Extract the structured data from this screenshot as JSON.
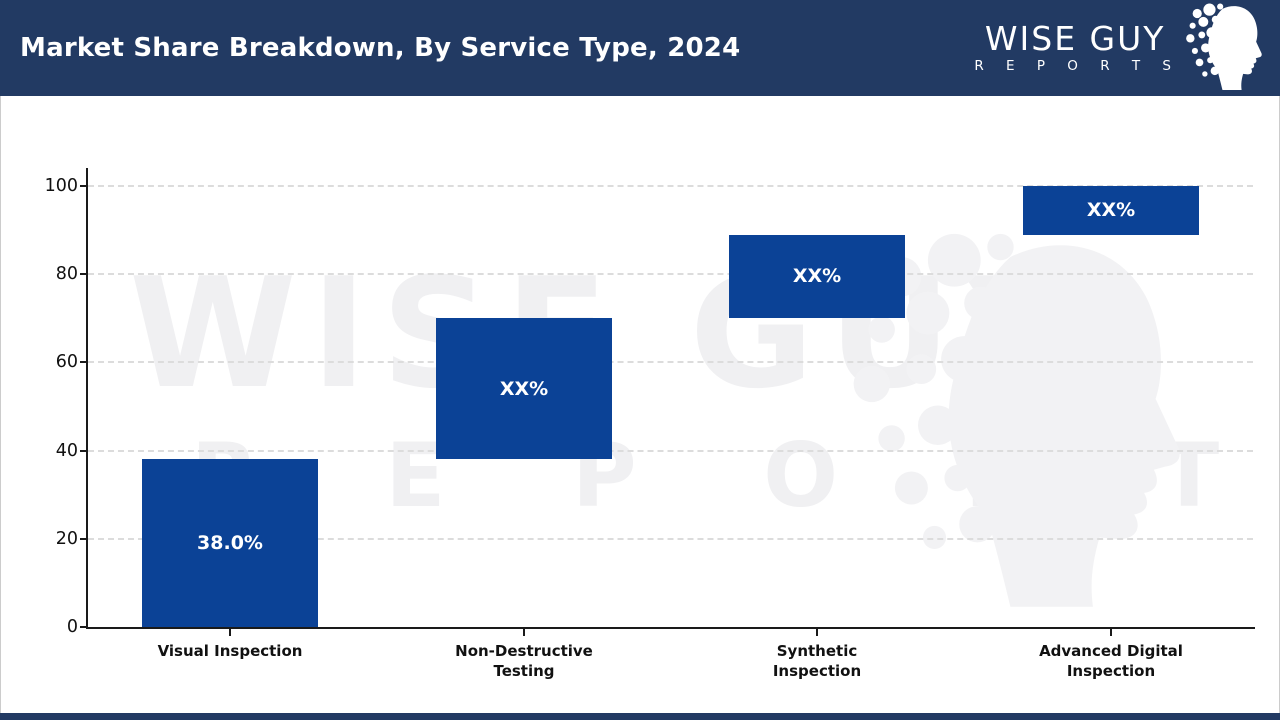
{
  "header": {
    "title": "Market Share Breakdown, By Service Type, 2024",
    "bg_color": "#223a63",
    "text_color": "#ffffff",
    "brand": {
      "line1": "WISE GUY",
      "line2": "R E P O R T S",
      "icon": "head-dots-icon"
    }
  },
  "watermark": {
    "line1": "WISE GUY",
    "line2": "R E P O R T S",
    "icon": "head-dots-icon"
  },
  "chart_data": {
    "type": "bar",
    "subtype": "floating-waterfall",
    "title": "Market Share Breakdown, By Service Type, 2024",
    "xlabel": "",
    "ylabel": "",
    "ylim": [
      0,
      100
    ],
    "yticks": [
      0,
      20,
      40,
      60,
      80,
      100
    ],
    "grid": "horizontal-dashed",
    "legend": "none",
    "bar_color": "#0b4296",
    "bar_label_color": "#ffffff",
    "categories": [
      {
        "label": "Visual Inspection",
        "lines": [
          "Visual Inspection"
        ]
      },
      {
        "label": "Non-Destructive Testing",
        "lines": [
          "Non-Destructive",
          "Testing"
        ]
      },
      {
        "label": "Synthetic Inspection",
        "lines": [
          "Synthetic",
          "Inspection"
        ]
      },
      {
        "label": "Advanced Digital Inspection",
        "lines": [
          "Advanced Digital",
          "Inspection"
        ]
      }
    ],
    "segments": [
      {
        "category": "Visual Inspection",
        "start": 0,
        "end": 38,
        "value": 38,
        "label": "38.0%"
      },
      {
        "category": "Non-Destructive Testing",
        "start": 38,
        "end": 70,
        "value": 32,
        "label": "XX%"
      },
      {
        "category": "Synthetic Inspection",
        "start": 70,
        "end": 89,
        "value": 19,
        "label": "XX%"
      },
      {
        "category": "Advanced Digital Inspection",
        "start": 89,
        "end": 100,
        "value": 11,
        "label": "XX%"
      }
    ]
  }
}
